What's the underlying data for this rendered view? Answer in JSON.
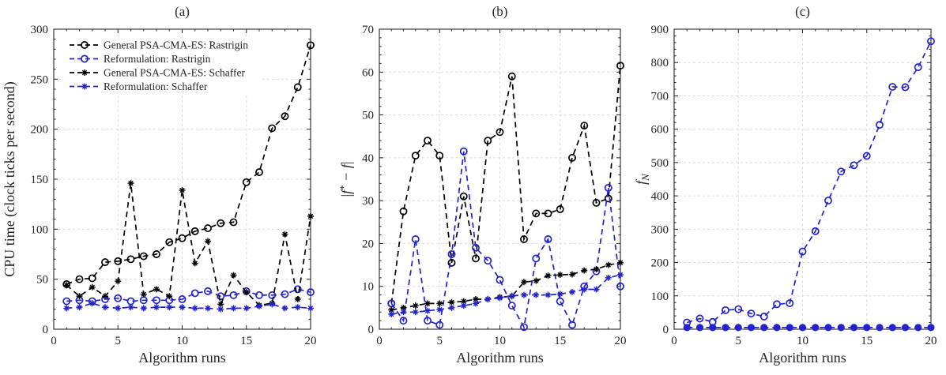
{
  "figure": {
    "colors": {
      "black_series": "#000000",
      "blue_series": "#2323cc",
      "grid": "#dcdcdc",
      "axis": "#262626",
      "background": "#ffffff"
    },
    "legend": {
      "entries": [
        {
          "label": "General PSA-CMA-ES: Rastrigin",
          "color": "#000000",
          "marker": "open-circle"
        },
        {
          "label": "Reformulation: Rastrigin",
          "color": "#2323cc",
          "marker": "open-circle"
        },
        {
          "label": "General PSA-CMA-ES: Schaffer",
          "color": "#000000",
          "marker": "asterisk"
        },
        {
          "label": "Reformulation: Schaffer",
          "color": "#2323cc",
          "marker": "asterisk"
        }
      ],
      "position": "top-left"
    }
  },
  "chart_data": [
    {
      "type": "line",
      "title": "(a)",
      "xlabel": "Algorithm runs",
      "ylabel": "CPU time (clock ticks per second)",
      "ylabel_rich": [
        {
          "t": "CPU time (clock ticks per second)"
        }
      ],
      "xlim": [
        0,
        20
      ],
      "ylim": [
        0,
        300
      ],
      "xticks": [
        0,
        5,
        10,
        15,
        20
      ],
      "yticks": [
        0,
        50,
        100,
        150,
        200,
        250,
        300
      ],
      "x_minor_step": 1,
      "y_minor_step": 10,
      "grid": true,
      "show_legend": true,
      "x": [
        1,
        2,
        3,
        4,
        5,
        6,
        7,
        8,
        9,
        10,
        11,
        12,
        13,
        14,
        15,
        16,
        17,
        18,
        19,
        20
      ],
      "series": [
        {
          "name": "General PSA-CMA-ES: Rastrigin",
          "color": "#000000",
          "marker": "open-circle",
          "linestyle": "dashed",
          "values": [
            45,
            50,
            51,
            67,
            68,
            70,
            73,
            75,
            87,
            91,
            98,
            101,
            106,
            107,
            147,
            157,
            201,
            213,
            242,
            284
          ]
        },
        {
          "name": "Reformulation: Rastrigin",
          "color": "#2323cc",
          "marker": "open-circle",
          "linestyle": "dashed",
          "values": [
            28,
            29,
            28,
            30,
            31,
            28,
            29,
            29,
            29,
            30,
            36,
            38,
            33,
            34,
            38,
            34,
            34,
            35,
            40,
            37
          ]
        },
        {
          "name": "General PSA-CMA-ES: Schaffer",
          "color": "#000000",
          "marker": "asterisk",
          "linestyle": "dashed",
          "values": [
            44,
            33,
            42,
            33,
            48,
            146,
            35,
            40,
            33,
            139,
            66,
            88,
            25,
            54,
            37,
            24,
            26,
            95,
            30,
            113
          ]
        },
        {
          "name": "Reformulation: Schaffer",
          "color": "#2323cc",
          "marker": "asterisk",
          "linestyle": "dashed",
          "values": [
            21,
            22,
            26,
            22,
            21,
            22,
            21,
            22,
            22,
            22,
            21,
            21,
            20,
            21,
            21,
            23,
            25,
            21,
            22,
            21
          ]
        }
      ]
    },
    {
      "type": "line",
      "title": "(b)",
      "xlabel": "Algorithm runs",
      "ylabel": "|f* - f|",
      "ylabel_rich": [
        {
          "t": "|"
        },
        {
          "t": "f",
          "i": 1
        },
        {
          "t": "*",
          "sup": 1
        },
        {
          "t": " − ",
          "i": 1
        },
        {
          "t": "f",
          "i": 1
        },
        {
          "t": "|"
        }
      ],
      "xlim": [
        0,
        20
      ],
      "ylim": [
        0,
        70
      ],
      "xticks": [
        0,
        5,
        10,
        15,
        20
      ],
      "yticks": [
        0,
        10,
        20,
        30,
        40,
        50,
        60,
        70
      ],
      "x_minor_step": 1,
      "y_minor_step": 2,
      "grid": true,
      "show_legend": false,
      "x": [
        1,
        2,
        3,
        4,
        5,
        6,
        7,
        8,
        9,
        10,
        11,
        12,
        13,
        14,
        15,
        16,
        17,
        18,
        19,
        20
      ],
      "series": [
        {
          "name": "General PSA-CMA-ES: Rastrigin",
          "color": "#000000",
          "marker": "open-circle",
          "linestyle": "dashed",
          "values": [
            6,
            27.5,
            40.5,
            44,
            40.5,
            15.5,
            31,
            16.5,
            44,
            46,
            59,
            21,
            27,
            27,
            28,
            40,
            47.5,
            29.5,
            30.5,
            61.5
          ]
        },
        {
          "name": "Reformulation: Rastrigin",
          "color": "#2323cc",
          "marker": "open-circle",
          "linestyle": "dashed",
          "values": [
            6,
            2,
            21,
            2,
            1,
            17.5,
            41.5,
            19,
            16,
            11.5,
            5.5,
            0.5,
            16.5,
            21,
            6.5,
            1,
            10,
            13.5,
            33,
            10
          ]
        },
        {
          "name": "General PSA-CMA-ES: Schaffer",
          "color": "#000000",
          "marker": "asterisk",
          "linestyle": "dashed",
          "values": [
            4.5,
            5,
            5.5,
            6,
            6,
            6.3,
            6.5,
            7,
            7,
            7.5,
            7.7,
            11,
            11.3,
            12.5,
            12.7,
            12.8,
            13.7,
            14,
            15,
            15.5
          ]
        },
        {
          "name": "Reformulation: Schaffer",
          "color": "#2323cc",
          "marker": "asterisk",
          "linestyle": "dashed",
          "values": [
            3.5,
            4,
            4,
            4.3,
            4.6,
            5,
            5.5,
            6,
            7,
            7.3,
            7.8,
            8,
            8,
            8,
            8.2,
            8.7,
            9.3,
            9.3,
            12,
            12.7
          ]
        }
      ]
    },
    {
      "type": "line",
      "title": "(c)",
      "xlabel": "Algorithm runs",
      "ylabel": "f_N",
      "ylabel_rich": [
        {
          "t": "f",
          "i": 1
        },
        {
          "t": "N",
          "i": 1,
          "sub": 1
        }
      ],
      "xlim": [
        0,
        20
      ],
      "ylim": [
        0,
        900
      ],
      "xticks": [
        0,
        5,
        10,
        15,
        20
      ],
      "yticks": [
        0,
        100,
        200,
        300,
        400,
        500,
        600,
        700,
        800,
        900
      ],
      "x_minor_step": 1,
      "y_minor_step": 20,
      "grid": true,
      "show_legend": false,
      "x": [
        1,
        2,
        3,
        4,
        5,
        6,
        7,
        8,
        9,
        10,
        11,
        12,
        13,
        14,
        15,
        16,
        17,
        18,
        19,
        20
      ],
      "series": [
        {
          "name": "Reformulation: Rastrigin",
          "color": "#2323cc",
          "marker": "open-circle",
          "linestyle": "dashed",
          "values": [
            20,
            32,
            22,
            57,
            60,
            47,
            38,
            75,
            78,
            233,
            294,
            386,
            473,
            492,
            520,
            613,
            727,
            726,
            786,
            864
          ]
        },
        {
          "name": "Reformulation: Schaffer",
          "color": "#2323cc",
          "marker": "filled-circle",
          "linestyle": "dashed",
          "values": [
            5,
            5,
            5,
            5,
            5,
            5,
            5,
            5,
            5,
            5,
            5,
            5,
            5,
            5,
            5,
            5,
            5,
            5,
            5,
            5
          ]
        }
      ]
    }
  ]
}
